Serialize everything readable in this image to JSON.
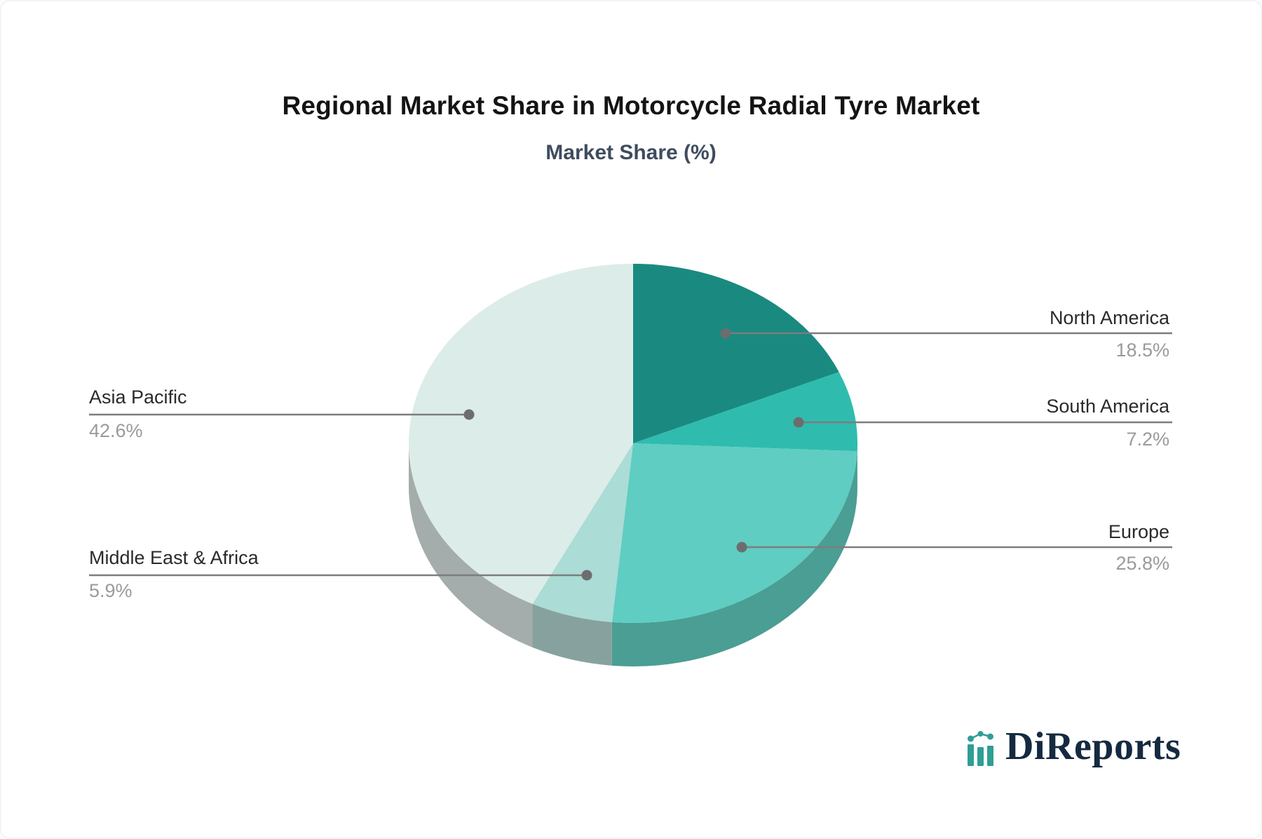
{
  "chart_data": {
    "type": "pie",
    "title": "Regional Market Share in Motorcycle Radial Tyre Market",
    "subtitle": "Market Share (%)",
    "total": 100,
    "start_angle_deg": 0,
    "direction": "clockwise",
    "style": "3d",
    "legend_position": "none",
    "labels_layout": "callout-leader-lines",
    "slices": [
      {
        "label": "North America",
        "value": 18.5,
        "pct_text": "18.5%",
        "color": "#1a8a80",
        "side_color": "#15776f"
      },
      {
        "label": "South America",
        "value": 7.2,
        "pct_text": "7.2%",
        "color": "#2fbcae",
        "side_color": "#28a095"
      },
      {
        "label": "Europe",
        "value": 25.8,
        "pct_text": "25.8%",
        "color": "#5fcdc1",
        "side_color": "#4a9e94"
      },
      {
        "label": "Middle East & Africa",
        "value": 5.9,
        "pct_text": "5.9%",
        "color": "#abdcd5",
        "side_color": "#87a29e"
      },
      {
        "label": "Asia Pacific",
        "value": 42.6,
        "pct_text": "42.6%",
        "color": "#dcece9",
        "side_color": "#a4adab"
      }
    ]
  },
  "colors": {
    "leader_line": "#7d7d7d",
    "dot": "#6d6d6d",
    "label_text": "#2a2a2a",
    "pct_text": "#9a9a9a",
    "title": "#141414",
    "subtitle": "#3f4c5e",
    "background": "#ffffff"
  },
  "logo": {
    "text": "DiReports",
    "icon": "bar-chart-logo-icon",
    "icon_color": "#2f9e96",
    "text_color": "#152a40"
  }
}
